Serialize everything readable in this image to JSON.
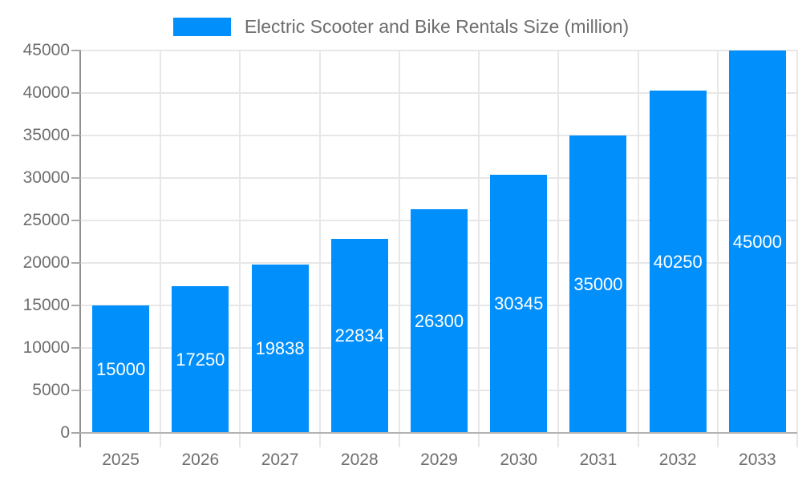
{
  "legend": {
    "items": [
      {
        "label": "Electric Scooter and Bike Rentals Size (million)",
        "color": "#008FFB"
      }
    ],
    "position": "top-center"
  },
  "chart_data": {
    "type": "bar",
    "title": "",
    "categories": [
      "2025",
      "2026",
      "2027",
      "2028",
      "2029",
      "2030",
      "2031",
      "2032",
      "2033"
    ],
    "series": [
      {
        "name": "Electric Scooter and Bike Rentals Size (million)",
        "color": "#008FFB",
        "values": [
          15000,
          17250,
          19838,
          22834,
          26300,
          30345,
          35000,
          40250,
          45000
        ]
      }
    ],
    "value_labels": {
      "visible": true,
      "color": "#ffffff",
      "position": "center-of-bar"
    },
    "xlabel": "",
    "ylabel": "",
    "ylim": [
      0,
      45000
    ],
    "ytick_step": 5000,
    "yticks": [
      0,
      5000,
      10000,
      15000,
      20000,
      25000,
      30000,
      35000,
      40000,
      45000
    ],
    "grid": {
      "horizontal": true,
      "vertical": true,
      "color": "#e7e7e7"
    },
    "axis": {
      "y_line_color": "#8f8f8f",
      "x_line_color": "#b3b3b3",
      "tick_color": "#a8a8a8",
      "label_color": "#6e6e6e"
    },
    "background": "#ffffff"
  }
}
